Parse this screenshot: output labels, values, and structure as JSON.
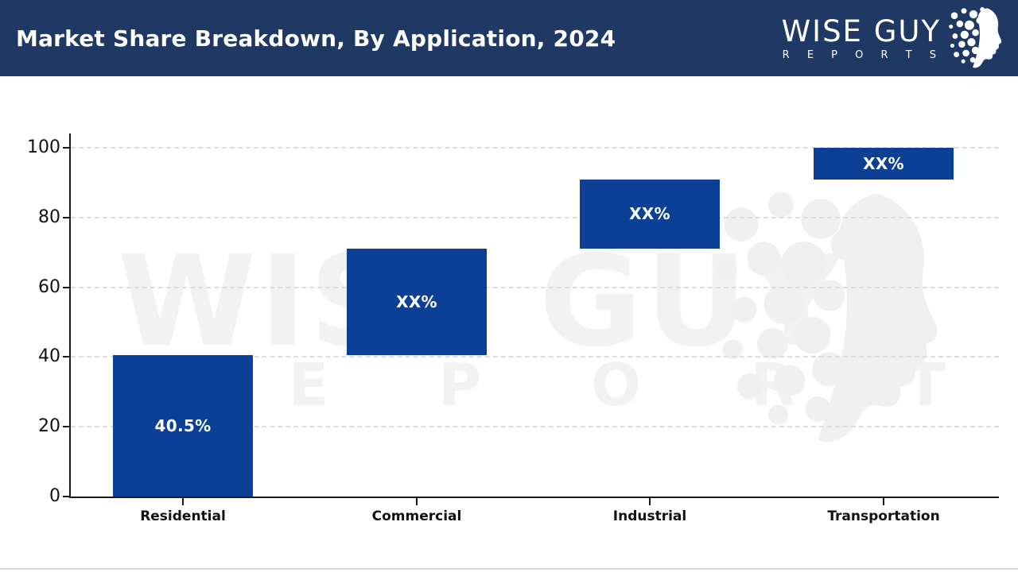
{
  "header": {
    "title": "Market Share Breakdown, By Application, 2024",
    "logo": {
      "line1": "WISE GUY",
      "line2": "R E P O R T S",
      "head_icon": "dotted-head-profile"
    }
  },
  "watermark": {
    "line1": "WISE GUY",
    "line2": "R E P O R T S",
    "head_icon": "dotted-head-profile"
  },
  "chart_data": {
    "type": "bar",
    "subtype": "floating-waterfall",
    "title": "Market Share Breakdown, By Application, 2024",
    "categories": [
      "Residential",
      "Commercial",
      "Industrial",
      "Transportation"
    ],
    "segments": [
      {
        "category": "Residential",
        "start": 0,
        "end": 40.5,
        "label": "40.5%"
      },
      {
        "category": "Commercial",
        "start": 40.5,
        "end": 71,
        "label": "XX%"
      },
      {
        "category": "Industrial",
        "start": 71,
        "end": 91,
        "label": "XX%"
      },
      {
        "category": "Transportation",
        "start": 91,
        "end": 100,
        "label": "XX%"
      }
    ],
    "yticks": [
      0,
      20,
      40,
      60,
      80,
      100
    ],
    "ylim": [
      0,
      100
    ],
    "xlabel": "",
    "ylabel": "",
    "grid": "horizontal-dashed",
    "legend": "none",
    "colors": {
      "bar": "#0c3f96",
      "bar_label": "#ffffff",
      "header_bg": "#1f3864",
      "grid": "#dcdcdc",
      "axis": "#1a1a1a",
      "tick_text": "#111111",
      "watermark": "#f2f2f2"
    }
  }
}
